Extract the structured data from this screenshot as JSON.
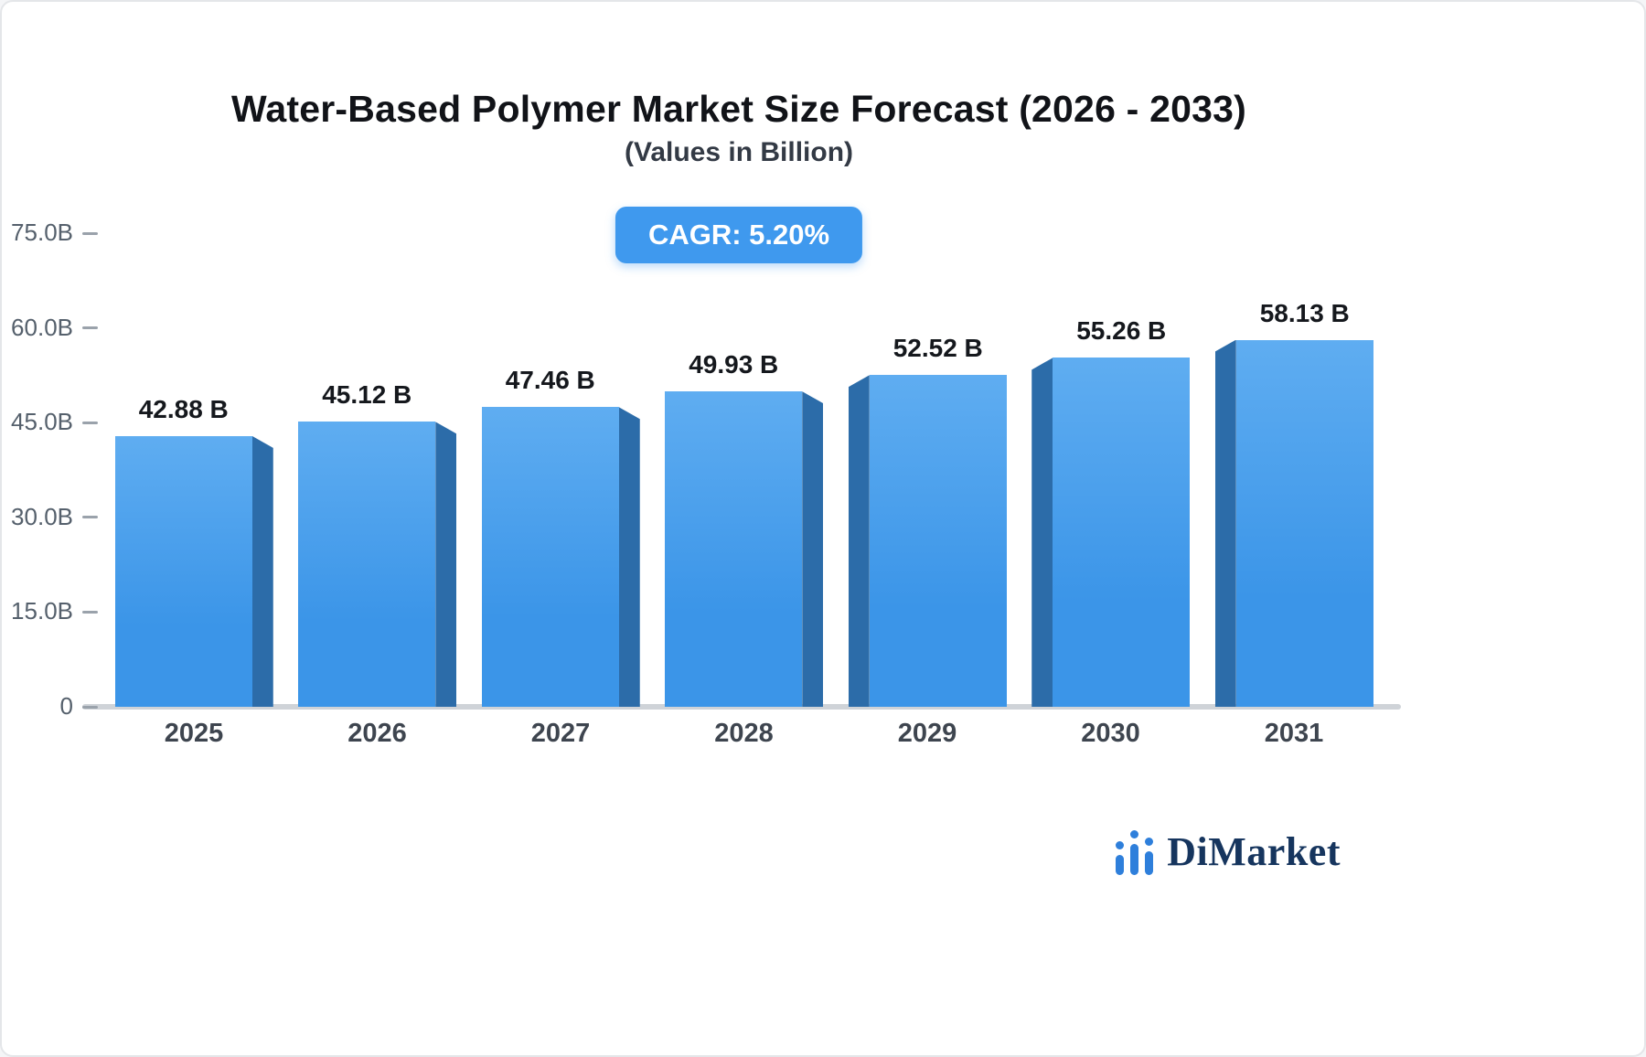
{
  "title": "Water-Based Polymer Market Size Forecast (2026 - 2033)",
  "subtitle": "(Values in Billion)",
  "badge": {
    "label": "CAGR: 5.20%"
  },
  "logo": {
    "text": "DiMarket"
  },
  "chart_data": {
    "type": "bar",
    "title": "Water-Based Polymer Market Size Forecast (2026 - 2033)",
    "subtitle": "(Values in Billion)",
    "cagr": "5.20%",
    "categories": [
      "2025",
      "2026",
      "2027",
      "2028",
      "2029",
      "2030",
      "2031"
    ],
    "values": [
      42.88,
      45.12,
      47.46,
      49.93,
      52.52,
      55.26,
      58.13
    ],
    "value_labels": [
      "42.88 B",
      "45.12 B",
      "47.46 B",
      "49.93 B",
      "52.52 B",
      "55.26 B",
      "58.13 B"
    ],
    "unit": "Billion",
    "xlabel": "",
    "ylabel": "",
    "ylim": [
      0,
      75
    ],
    "yticks": [
      "75.0B",
      "60.0B",
      "45.0B",
      "30.0B",
      "15.0B",
      "0"
    ],
    "ytick_values": [
      75,
      60,
      45,
      30,
      15,
      0
    ],
    "grid": "off",
    "legend": "none",
    "colors": {
      "bar_top": "#5fadf1",
      "bar_bottom": "#3b95e8",
      "bar_side": "#2c6ca9",
      "badge_bg": "#3f99ee",
      "axis_line": "#cfd3d8",
      "logo_blue": "#2e7fdb",
      "logo_navy": "#16355e"
    }
  }
}
